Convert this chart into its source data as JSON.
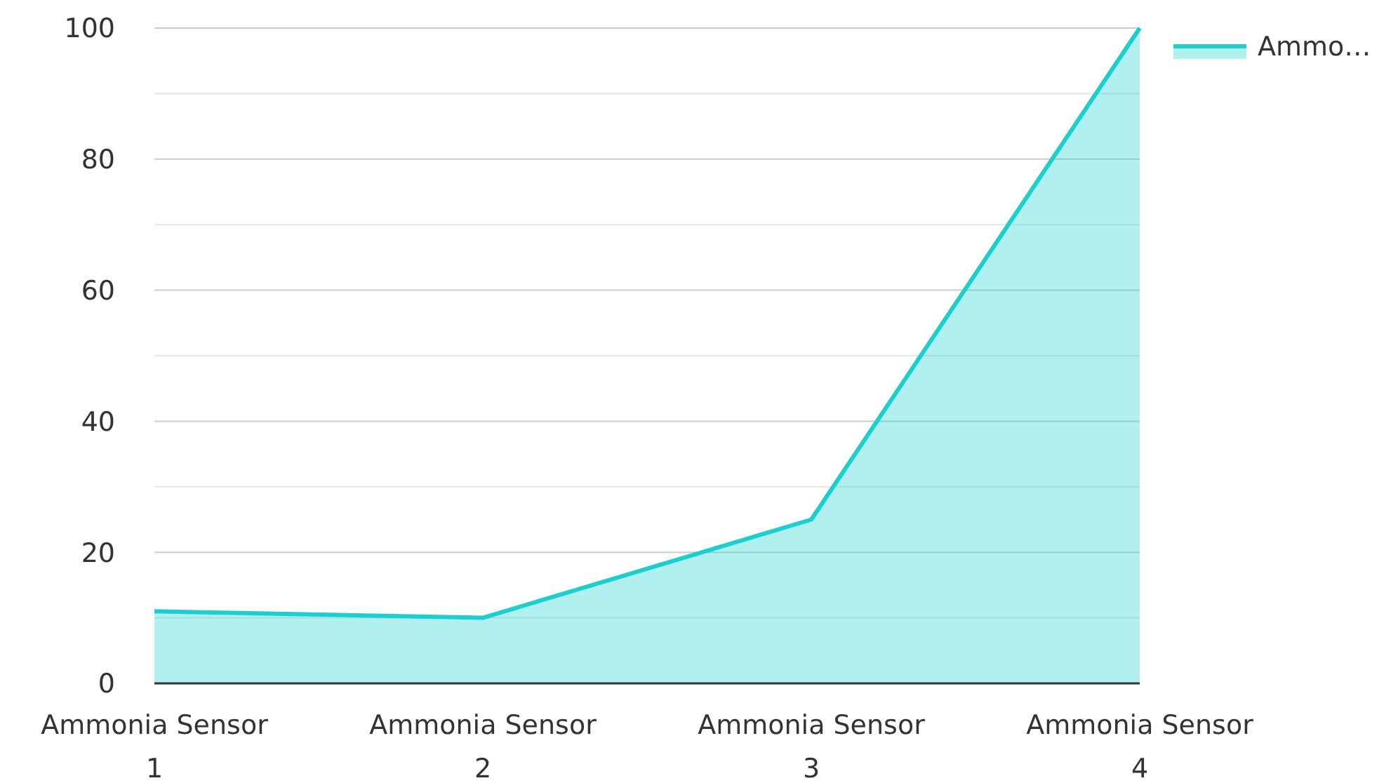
{
  "chart_data": {
    "type": "area",
    "categories": [
      "Ammonia Sensor 1",
      "Ammonia Sensor 2",
      "Ammonia Sensor 3",
      "Ammonia Sensor 4"
    ],
    "series": [
      {
        "name": "Ammo…",
        "color": "#1ccfcf",
        "values": [
          11,
          10,
          25,
          100
        ]
      }
    ],
    "ylim": [
      0,
      100
    ],
    "yticks": [
      0,
      {
        "value": 10,
        "label": null
      },
      20,
      {
        "value": 30,
        "label": null
      },
      40,
      {
        "value": 50,
        "label": null
      },
      60,
      {
        "value": 70,
        "label": null
      },
      80,
      {
        "value": 90,
        "label": null
      },
      100
    ],
    "grid": "y",
    "legend": "top right"
  }
}
